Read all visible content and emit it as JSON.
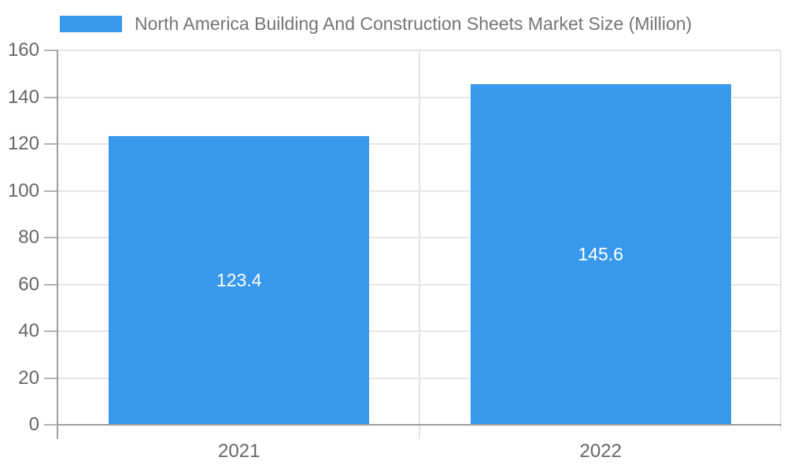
{
  "legend": {
    "label": "North America Building And Construction Sheets Market Size (Million)"
  },
  "chart_data": {
    "type": "bar",
    "title": "North America Building And Construction Sheets Market Size (Million)",
    "categories": [
      "2021",
      "2022"
    ],
    "series": [
      {
        "name": "North America Building And Construction Sheets Market Size (Million)",
        "values": [
          123.4,
          145.6
        ]
      }
    ],
    "data_labels": [
      "123.4",
      "145.6"
    ],
    "xlabel": "",
    "ylabel": "",
    "ylim": [
      0,
      160
    ],
    "y_ticks": [
      0,
      20,
      40,
      60,
      80,
      100,
      120,
      140,
      160
    ],
    "grid": true,
    "legend_position": "top"
  },
  "colors": {
    "bar": "#3898EC",
    "grid": "#E6E6E6",
    "axis": "#9E9E9E",
    "tick": "#B3B3B3",
    "axis_label": "#666666",
    "legend_text": "#757575",
    "data_label": "#FFFFFF",
    "background": "#FFFFFF"
  }
}
